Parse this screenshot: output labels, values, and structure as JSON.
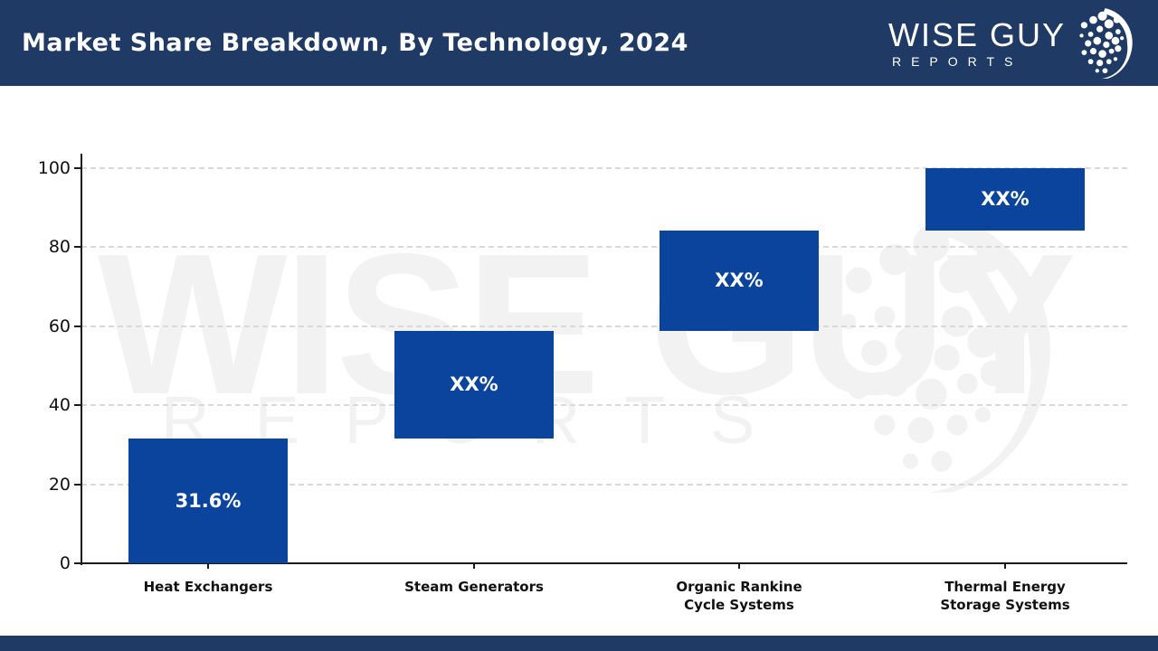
{
  "header": {
    "title": "Market Share Breakdown, By Technology, 2024",
    "logo": {
      "line1": "WISE GUY",
      "line2": "REPORTS"
    }
  },
  "watermark": {
    "line1": "WISE GUY",
    "line2": "REPORTS"
  },
  "colors": {
    "banner_bg": "#1f3a64",
    "bar": "#0a449c",
    "grid": "#d9d9d9",
    "axis": "#1a1a1a",
    "watermark": "#f2f2f2",
    "bar_label": "#ffffff"
  },
  "chart_data": {
    "type": "bar",
    "subtype": "floating-waterfall",
    "title": "Market Share Breakdown, By Technology, 2024",
    "categories": [
      "Heat Exchangers",
      "Steam Generators",
      "Organic Rankine\nCycle Systems",
      "Thermal Energy\nStorage Systems"
    ],
    "segments": [
      {
        "category": "Heat Exchangers",
        "start": 0,
        "end": 31.6,
        "label": "31.6%"
      },
      {
        "category": "Steam Generators",
        "start": 31.6,
        "end": 58.8,
        "label": "XX%"
      },
      {
        "category": "Organic Rankine Cycle Systems",
        "start": 58.8,
        "end": 84.2,
        "label": "XX%"
      },
      {
        "category": "Thermal Energy Storage Systems",
        "start": 84.2,
        "end": 100,
        "label": "XX%"
      }
    ],
    "xlabel": "",
    "ylabel": "",
    "ylim": [
      0,
      100
    ],
    "yticks": [
      0,
      20,
      40,
      60,
      80,
      100
    ],
    "grid": "horizontal-dashed",
    "legend": "none"
  }
}
